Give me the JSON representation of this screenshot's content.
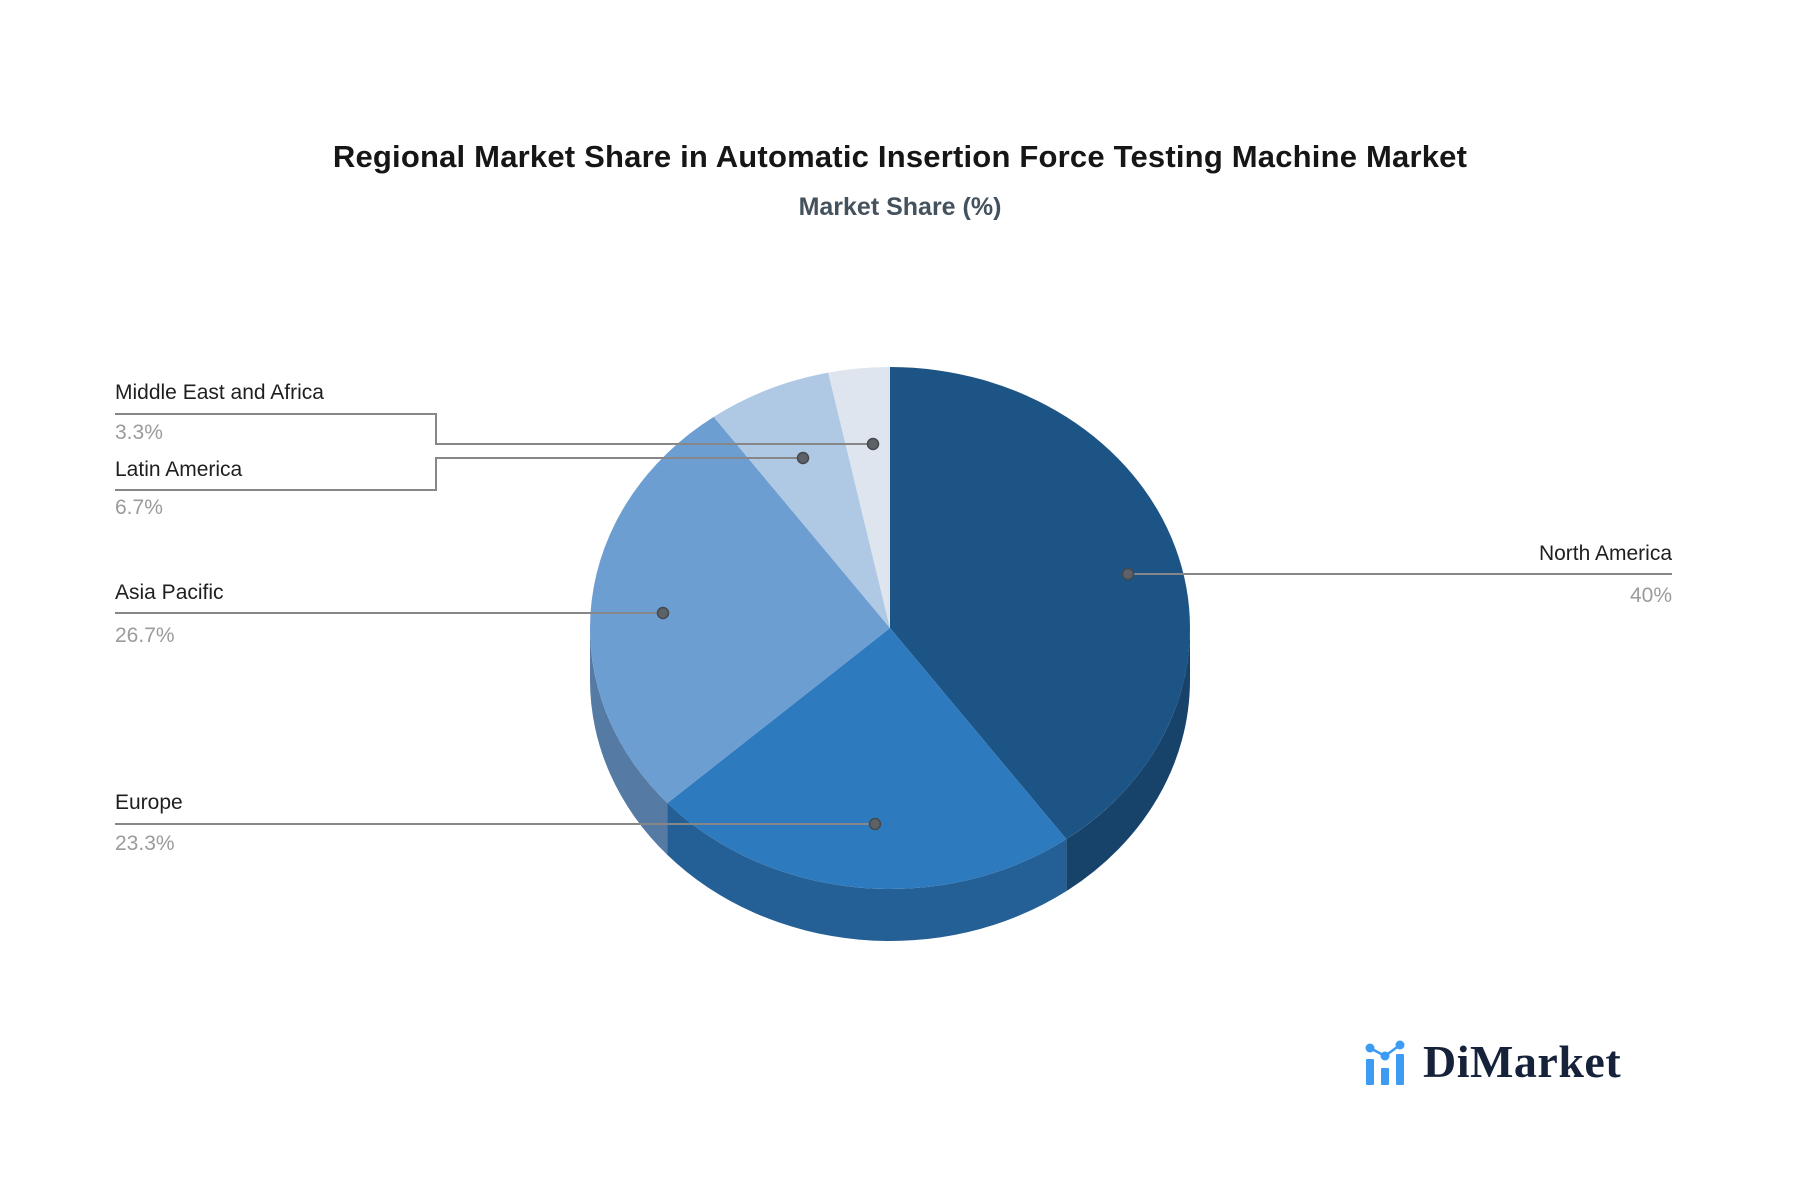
{
  "header": {
    "title": "Regional Market Share in Automatic Insertion Force Testing Machine Market",
    "subtitle": "Market Share (%)"
  },
  "brand": {
    "name": "DiMarket",
    "icon": "bar-chart-logo-icon",
    "icon_color": "#3d9bf3",
    "text_color": "#15223a"
  },
  "chart_data": {
    "type": "pie",
    "style": "3d",
    "title": "Regional Market Share in Automatic Insertion Force Testing Machine Market",
    "subtitle": "Market Share (%)",
    "unit": "%",
    "start_angle_deg": 0,
    "direction": "clockwise",
    "legend_position": "callout-labels",
    "slices": [
      {
        "label": "North America",
        "value": 40,
        "percent_label": "40%",
        "color": "#1d5486"
      },
      {
        "label": "Europe",
        "value": 23.3,
        "percent_label": "23.3%",
        "color": "#2e7abf"
      },
      {
        "label": "Asia Pacific",
        "value": 26.7,
        "percent_label": "26.7%",
        "color": "#6d9ed2"
      },
      {
        "label": "Latin America",
        "value": 6.7,
        "percent_label": "6.7%",
        "color": "#afc9e4"
      },
      {
        "label": "Middle East and Africa",
        "value": 3.3,
        "percent_label": "3.3%",
        "color": "#dee5ee"
      }
    ],
    "label_text_color": "#1f1f1f",
    "percent_text_color": "#9b9b9b",
    "leader_line_color": "#878787",
    "leader_dot_color": "#5c6267"
  }
}
